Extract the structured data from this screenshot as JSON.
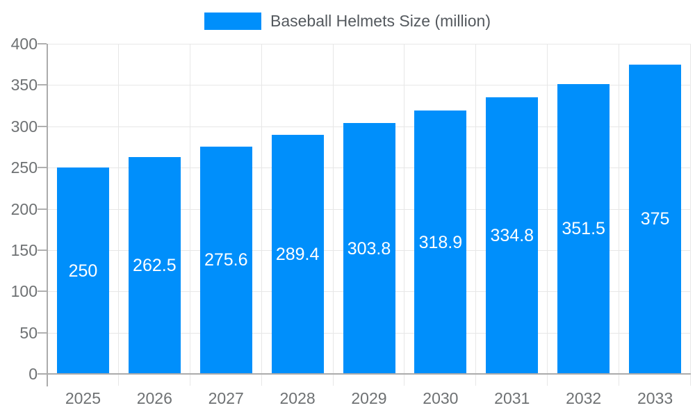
{
  "chart_data": {
    "type": "bar",
    "title": "Baseball Helmets Size (million)",
    "legend": {
      "label": "Baseball Helmets Size (million)",
      "position": "top"
    },
    "categories": [
      "2025",
      "2026",
      "2027",
      "2028",
      "2029",
      "2030",
      "2031",
      "2032",
      "2033"
    ],
    "series": [
      {
        "name": "Baseball Helmets Size (million)",
        "values": [
          250,
          262.5,
          275.6,
          289.4,
          303.8,
          318.9,
          334.8,
          351.5,
          375
        ]
      }
    ],
    "value_labels": [
      "250",
      "262.5",
      "275.6",
      "289.4",
      "303.8",
      "318.9",
      "334.8",
      "351.5",
      "375"
    ],
    "xlabel": "",
    "ylabel": "",
    "ylim": [
      0,
      400
    ],
    "yticks": [
      "0",
      "50",
      "100",
      "150",
      "200",
      "250",
      "300",
      "350",
      "400"
    ],
    "grid": true,
    "legend_position": "top",
    "colors": {
      "bar": "#008FFB",
      "grid": "#e7e7e7",
      "axis": "#ababab",
      "tick": "#b0b0b0",
      "axis_label": "#6e7173",
      "legend_label": "#54595e",
      "value_label": "#ffffff",
      "background": "#ffffff"
    }
  }
}
